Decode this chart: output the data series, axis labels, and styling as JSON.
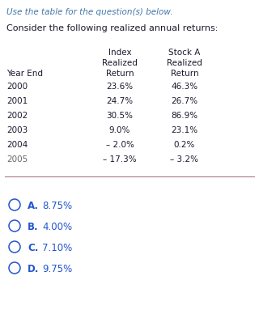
{
  "italic_text": "Use the table for the question(s) below.",
  "intro_text": "Consider the following realized annual returns:",
  "years": [
    "2000",
    "2001",
    "2002",
    "2003",
    "2004",
    "2005"
  ],
  "index_returns": [
    "23.6%",
    "24.7%",
    "30.5%",
    "9.0%",
    "– 2.0%",
    "– 17.3%"
  ],
  "stock_returns": [
    "46.3%",
    "26.7%",
    "86.9%",
    "23.1%",
    "0.2%",
    "– 3.2%"
  ],
  "options": [
    "A.",
    "B.",
    "C.",
    "D."
  ],
  "option_values": [
    "8.75%",
    "4.00%",
    "7.10%",
    "9.75%"
  ],
  "bg_color": "#ffffff",
  "text_color": "#1a1a2e",
  "header_color": "#1a1a2e",
  "option_text_color": "#2255cc",
  "italic_color": "#4477aa",
  "divider_color": "#aa7788",
  "year_2005_color": "#666666",
  "fs_italic": 7.5,
  "fs_intro": 8.0,
  "fs_table": 7.5,
  "fs_options": 8.5
}
